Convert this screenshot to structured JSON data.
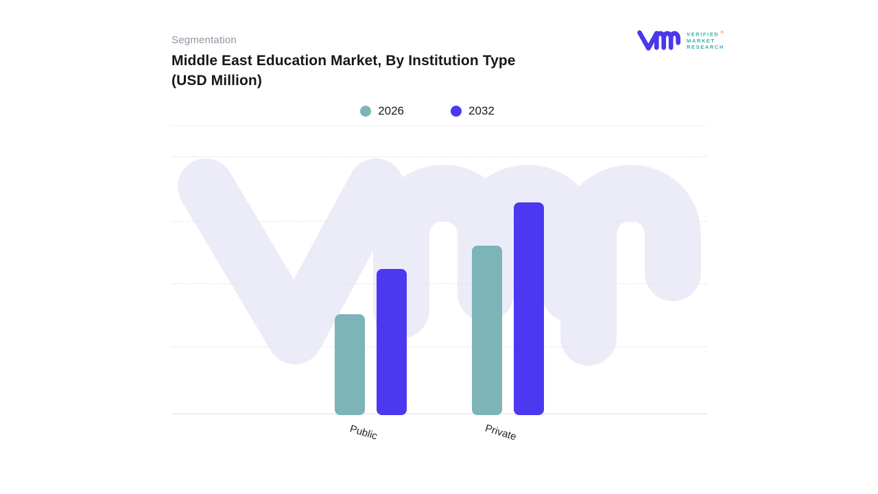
{
  "header": {
    "eyebrow": "Segmentation",
    "title_line1": "Middle East Education Market, By Institution Type",
    "title_line2": "(USD Million)"
  },
  "logo": {
    "company": "Verified Market Research",
    "word1": "VERIFIED",
    "word2": "MARKET",
    "word3": "RESEARCH",
    "registered_mark": "®",
    "mark_color": "#4a38ea",
    "text_color": "#2fb3a9",
    "registered_color": "#f59a23"
  },
  "legend": {
    "items": [
      {
        "label": "2026",
        "color": "#7cb4b8"
      },
      {
        "label": "2032",
        "color": "#4c38f0"
      }
    ]
  },
  "chart_data": {
    "type": "bar",
    "title": "Middle East Education Market, By Institution Type (USD Million)",
    "categories": [
      "Public",
      "Private"
    ],
    "series": [
      {
        "name": "2026",
        "color": "#7cb4b8",
        "values": [
          1.56,
          2.63
        ]
      },
      {
        "name": "2032",
        "color": "#4c38f0",
        "values": [
          2.27,
          3.3
        ]
      }
    ],
    "xlabel": "",
    "ylabel": "",
    "value_axis_labels_visible": false,
    "ylim": [
      0,
      4
    ],
    "grid": "horizontal dashed gridlines, no tick labels",
    "legend_position": "top-center",
    "note": "No numeric axis labels shown; values estimated in gridline units (1 unit = one dashed-gridline interval)"
  },
  "watermark": {
    "label": "vmr",
    "color": "#ececf8"
  }
}
